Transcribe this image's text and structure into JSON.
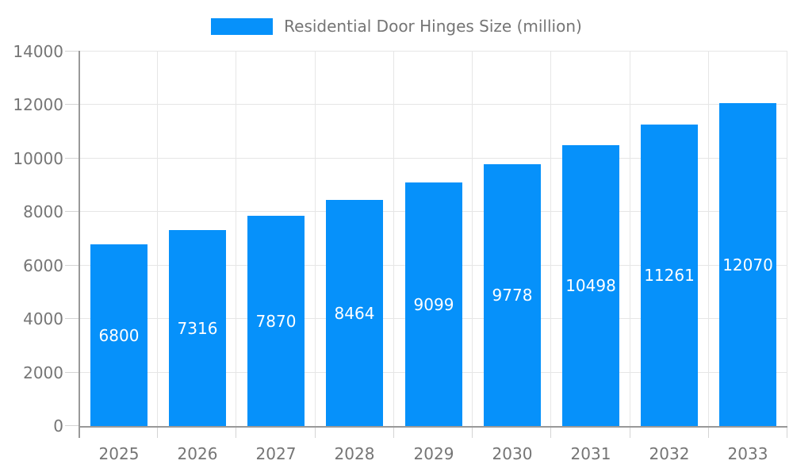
{
  "chart_data": {
    "type": "bar",
    "title": "Residential Door Hinges Size (million)",
    "series_name": "Residential Door Hinges Size (million)",
    "categories": [
      "2025",
      "2026",
      "2027",
      "2028",
      "2029",
      "2030",
      "2031",
      "2032",
      "2033"
    ],
    "values": [
      6800,
      7316,
      7870,
      8464,
      9099,
      9778,
      10498,
      11261,
      12070
    ],
    "xlabel": "",
    "ylabel": "",
    "ylim": [
      0,
      14000
    ],
    "ytick_step": 2000,
    "ytick_labels": [
      "0",
      "2000",
      "4000",
      "6000",
      "8000",
      "10000",
      "12000",
      "14000"
    ],
    "grid": true,
    "legend_position": "top-center",
    "value_labels": "inside-center",
    "colors": {
      "bar": "#0691FA",
      "grid": "#e6e6e6",
      "axis": "#999999",
      "tick": "#d4d4d4",
      "text": "#757575",
      "value_label": "#ffffff",
      "background": "#ffffff"
    }
  }
}
